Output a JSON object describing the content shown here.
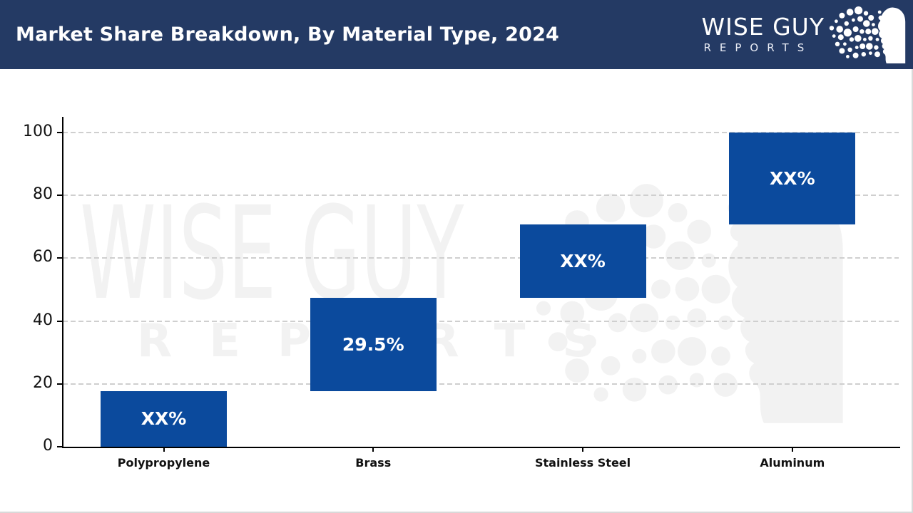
{
  "header": {
    "title": "Market Share Breakdown, By Material Type, 2024",
    "logo": {
      "line1": "WISE GUY",
      "line2": "REPORTS"
    }
  },
  "watermark": {
    "line1": "WISE GUY",
    "line2": "REPORTS"
  },
  "colors": {
    "header_bg": "#243a64",
    "bar": "#0b4a9d",
    "bar_label": "#ffffff",
    "grid": "#cfcfcf",
    "axis": "#000000",
    "tick_text": "#111111",
    "watermark": "#f2f2f2",
    "page_border": "#d9d9d9"
  },
  "chart_data": {
    "type": "bar",
    "subtype": "floating-waterfall",
    "title": "Market Share Breakdown, By Material Type, 2024",
    "categories": [
      "Polypropylene",
      "Brass",
      "Stainless Steel",
      "Aluminum"
    ],
    "segments": [
      {
        "category": "Polypropylene",
        "start": 0,
        "end": 17.8,
        "value": 17.8,
        "label": "XX%"
      },
      {
        "category": "Brass",
        "start": 17.8,
        "end": 47.3,
        "value": 29.5,
        "label": "29.5%"
      },
      {
        "category": "Stainless Steel",
        "start": 47.3,
        "end": 70.8,
        "value": 23.5,
        "label": "XX%"
      },
      {
        "category": "Aluminum",
        "start": 70.8,
        "end": 100,
        "value": 29.2,
        "label": "XX%"
      }
    ],
    "xlabel": "",
    "ylabel": "",
    "ylim": [
      0,
      105
    ],
    "yticks": [
      0,
      20,
      40,
      60,
      80,
      100
    ],
    "grid": {
      "horizontal": true,
      "style": "dashed",
      "color": "#cfcfcf"
    },
    "legend": null
  }
}
